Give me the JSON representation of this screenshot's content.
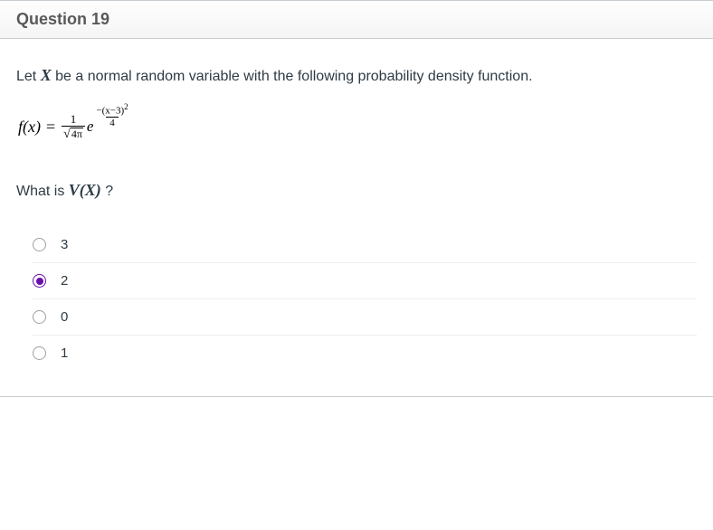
{
  "header": {
    "title": "Question 19"
  },
  "prompt": {
    "prefix": "Let ",
    "var": "X",
    "suffix": " be a normal random variable with the following probability density function."
  },
  "formula": {
    "fx": "f(x)",
    "eq": "=",
    "frac_num": "1",
    "sqrt_arg": "4π",
    "e": "e",
    "exp_num": "−(x−3)",
    "exp_num_sup": "2",
    "exp_den": "4"
  },
  "subquestion": {
    "prefix": "What is ",
    "vx": "V(X)",
    "suffix": " ?"
  },
  "options": [
    {
      "label": "3",
      "selected": false
    },
    {
      "label": "2",
      "selected": true
    },
    {
      "label": "0",
      "selected": false
    },
    {
      "label": "1",
      "selected": false
    }
  ],
  "style": {
    "accent_color": "#6a0dad",
    "text_color": "#2d3b45",
    "header_text_color": "#595959",
    "border_color": "#c7cdd1",
    "option_divider": "#eeeeee",
    "radio_border": "#a0a0a0",
    "background": "#ffffff"
  }
}
